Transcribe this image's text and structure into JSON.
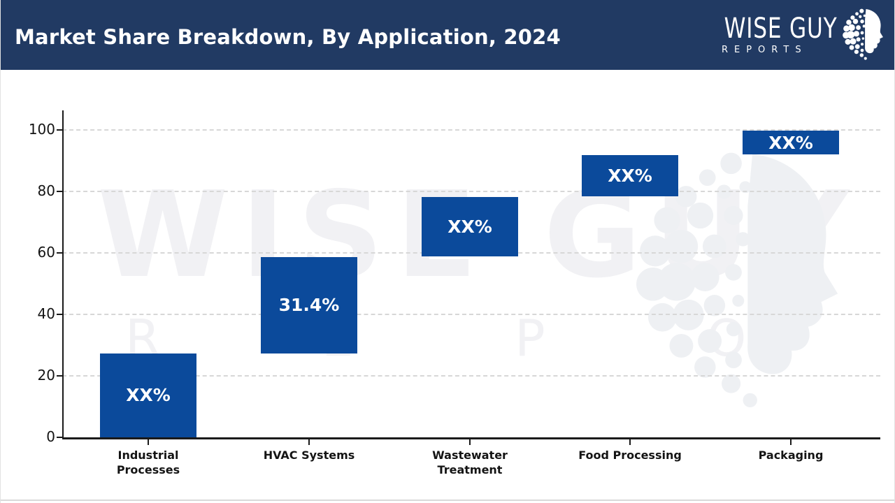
{
  "header": {
    "title": "Market Share Breakdown, By Application, 2024",
    "logo": {
      "line1": "WISE GUY",
      "line2": "REPORTS"
    }
  },
  "watermark": {
    "line1": "WISE GUY",
    "line2": "R E P O R T S"
  },
  "chart_data": {
    "type": "waterfall",
    "title": "Market Share Breakdown, By Application, 2024",
    "categories": [
      "Industrial Processes",
      "HVAC Systems",
      "Wastewater Treatment",
      "Food Processing",
      "Packaging"
    ],
    "category_label_lines": [
      [
        "Industrial",
        "Processes"
      ],
      [
        "HVAC Systems"
      ],
      [
        "Wastewater",
        "Treatment"
      ],
      [
        "Food Processing"
      ],
      [
        "Packaging"
      ]
    ],
    "segments": [
      {
        "category": "Industrial Processes",
        "start": 0,
        "end": 27.3,
        "value": 27.3,
        "label": "XX%"
      },
      {
        "category": "HVAC Systems",
        "start": 27.3,
        "end": 58.7,
        "value": 31.4,
        "label": "31.4%"
      },
      {
        "category": "Wastewater Treatment",
        "start": 58.9,
        "end": 78.2,
        "value": 19.3,
        "label": "XX%"
      },
      {
        "category": "Food Processing",
        "start": 78.4,
        "end": 91.8,
        "value": 13.4,
        "label": "XX%"
      },
      {
        "category": "Packaging",
        "start": 92.0,
        "end": 99.8,
        "value": 7.8,
        "label": "XX%"
      }
    ],
    "ylim": [
      0,
      100
    ],
    "yticks": [
      0,
      20,
      40,
      60,
      80,
      100
    ],
    "xlabel": "",
    "ylabel": "",
    "grid": "horizontal-dashed",
    "legend": "none",
    "bar_color": "#0b4a9b",
    "bar_label_color": "#ffffff",
    "header_color": "#213a63"
  }
}
